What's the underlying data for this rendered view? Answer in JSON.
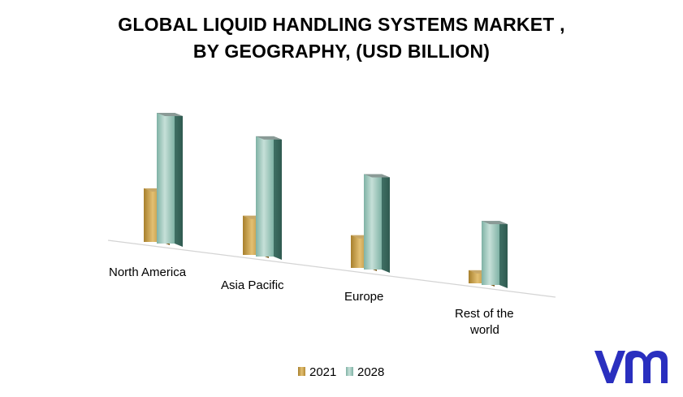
{
  "chart_data": {
    "type": "bar",
    "title_lines": [
      "GLOBAL LIQUID HANDLING SYSTEMS MARKET ,",
      "BY GEOGRAPHY, (USD BILLION)"
    ],
    "categories": [
      [
        "North America"
      ],
      [
        "Asia Pacific"
      ],
      [
        "Europe"
      ],
      [
        "Rest of the",
        "world"
      ]
    ],
    "series": [
      {
        "name": "2021",
        "values": [
          4.1,
          3.0,
          2.5,
          1.0
        ],
        "color": "#c9a24e"
      },
      {
        "name": "2028",
        "values": [
          10.0,
          9.2,
          7.3,
          4.9
        ],
        "color": "#5f9b8e"
      }
    ],
    "ylim": [
      0,
      10
    ],
    "legend_position": "bottom",
    "gridlines": false
  },
  "logo": {
    "text": "vmr",
    "color": "#2a2fbf"
  }
}
